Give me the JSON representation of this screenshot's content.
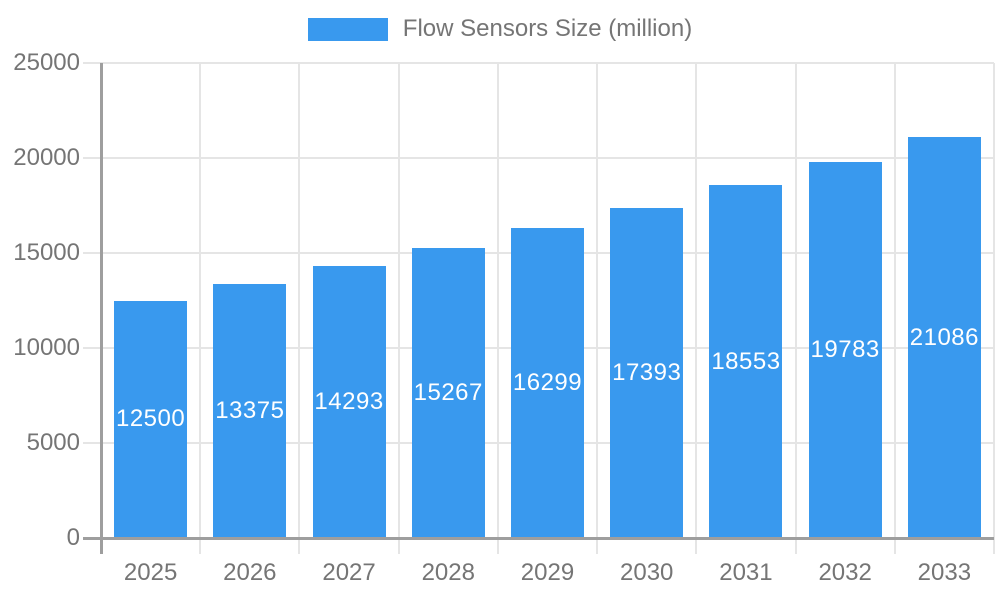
{
  "chart_data": {
    "type": "bar",
    "title": "",
    "legend": {
      "label": "Flow Sensors Size (million)",
      "position": "top"
    },
    "categories": [
      "2025",
      "2026",
      "2027",
      "2028",
      "2029",
      "2030",
      "2031",
      "2032",
      "2033"
    ],
    "series": [
      {
        "name": "Flow Sensors Size (million)",
        "values": [
          12500,
          13375,
          14293,
          15267,
          16299,
          17393,
          18553,
          19783,
          21086
        ]
      }
    ],
    "xlabel": "",
    "ylabel": "",
    "ylim": [
      0,
      25000
    ],
    "yticks": [
      0,
      5000,
      10000,
      15000,
      20000,
      25000
    ],
    "grid": true,
    "value_labels": "inside-center",
    "colors": {
      "bar": "#3999EE",
      "bar_value_text": "#FFFFFF",
      "axis_text": "#757575",
      "gridline": "#E5E5E5",
      "axis_line": "#9E9E9E",
      "background": "#FFFFFF"
    }
  }
}
